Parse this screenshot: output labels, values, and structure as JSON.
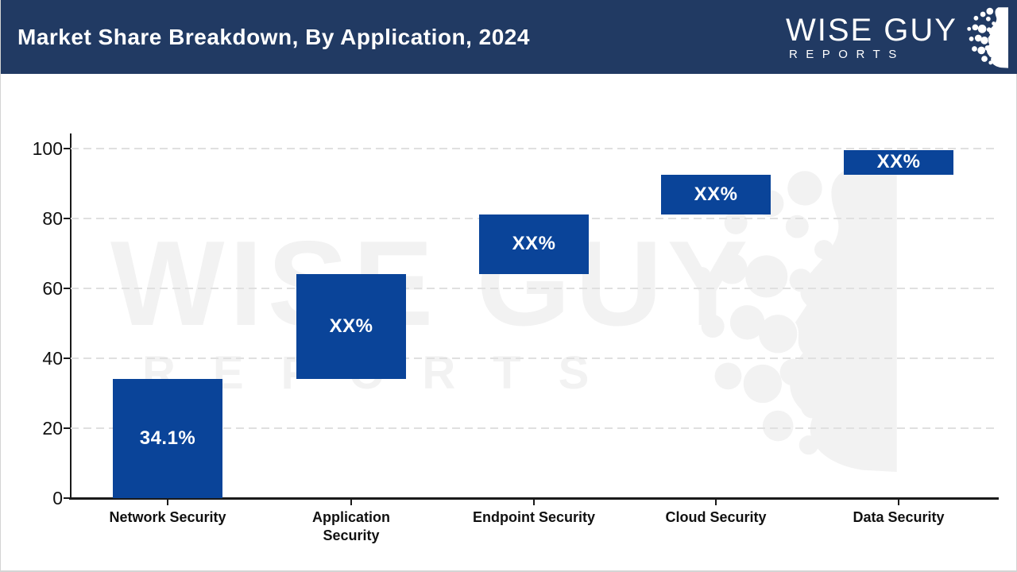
{
  "header": {
    "title": "Market Share Breakdown, By Application, 2024",
    "bg_color": "#213a63",
    "logo": {
      "line1": "WISE GUY",
      "line2": "REPORTS"
    }
  },
  "watermark": {
    "line1": "WISE GUY",
    "line2": "REPORTS"
  },
  "chart_data": {
    "type": "bar",
    "subtype": "waterfall",
    "title": "Market Share Breakdown, By Application, 2024",
    "categories": [
      "Network Security",
      "Application Security",
      "Endpoint Security",
      "Cloud Security",
      "Data Security"
    ],
    "segments": [
      {
        "category": "Network Security",
        "start": 0,
        "end": 34.1,
        "value_label": "34.1%"
      },
      {
        "category": "Application Security",
        "start": 34.1,
        "end": 64.2,
        "value_label": "XX%"
      },
      {
        "category": "Endpoint Security",
        "start": 64.2,
        "end": 81.1,
        "value_label": "XX%"
      },
      {
        "category": "Cloud Security",
        "start": 81.1,
        "end": 92.5,
        "value_label": "XX%"
      },
      {
        "category": "Data Security",
        "start": 92.5,
        "end": 99.6,
        "value_label": "XX%"
      }
    ],
    "y_ticks": [
      0,
      20,
      40,
      60,
      80,
      100
    ],
    "ylim": [
      0,
      105
    ],
    "xlabel": "",
    "ylabel": "",
    "grid": "horizontal-dashed",
    "legend": "none",
    "bar_color": "#0a4499",
    "value_label_color": "#ffffff",
    "axis_color": "#1a1a1a"
  }
}
